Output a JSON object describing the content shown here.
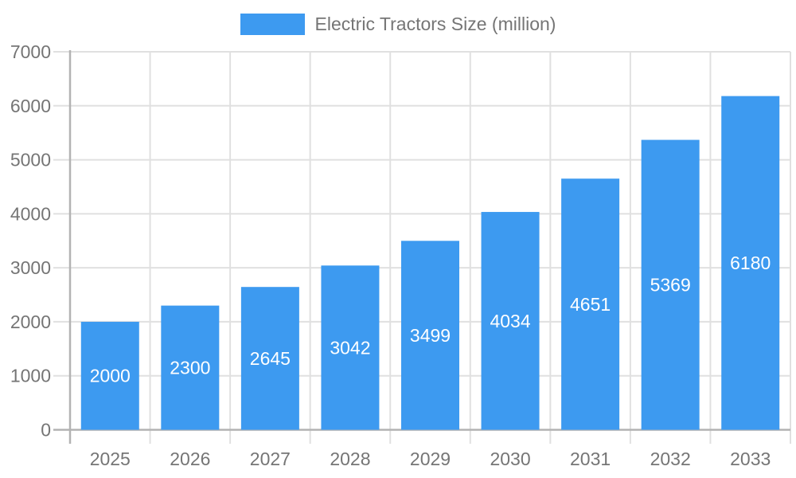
{
  "chart_data": {
    "type": "bar",
    "title": "Electric Tractors Size (million)",
    "legend": {
      "label": "Electric Tractors Size (million)",
      "position": "top-center"
    },
    "categories": [
      "2025",
      "2026",
      "2027",
      "2028",
      "2029",
      "2030",
      "2031",
      "2032",
      "2033"
    ],
    "series": [
      {
        "name": "Electric Tractors Size (million)",
        "values": [
          2000,
          2300,
          2645,
          3042,
          3499,
          4034,
          4651,
          5369,
          6180
        ]
      }
    ],
    "bar_value_labels": [
      "2000",
      "2300",
      "2645",
      "3042",
      "3499",
      "4034",
      "4651",
      "5369",
      "6180"
    ],
    "xlabel": "",
    "ylabel": "",
    "ylim": [
      0,
      7000
    ],
    "yticks": [
      0,
      1000,
      2000,
      3000,
      4000,
      5000,
      6000,
      7000
    ],
    "grid": true,
    "colors": {
      "bar": "#3D9AF0",
      "axis_line": "#b3b3b3",
      "grid_line": "#e0e0e0",
      "tick_label": "#757575",
      "bar_label": "#ffffff",
      "background": "#ffffff"
    }
  }
}
